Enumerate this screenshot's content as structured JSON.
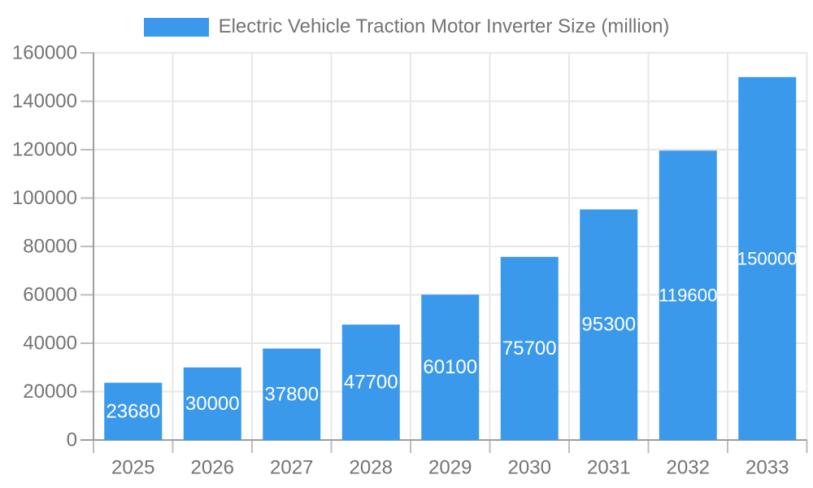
{
  "chart_data": {
    "type": "bar",
    "title": "Electric Vehicle Traction Motor Inverter Size (million)",
    "series_name": "Electric Vehicle Traction Motor Inverter Size (million)",
    "categories": [
      "2025",
      "2026",
      "2027",
      "2028",
      "2029",
      "2030",
      "2031",
      "2032",
      "2033"
    ],
    "values": [
      23680,
      30000,
      37800,
      47700,
      60100,
      75700,
      95300,
      119600,
      150000
    ],
    "xlabel": "",
    "ylabel": "",
    "ylim": [
      0,
      160000
    ],
    "yticks": [
      0,
      20000,
      40000,
      60000,
      80000,
      100000,
      120000,
      140000,
      160000
    ],
    "grid": true,
    "legend_position": "top",
    "value_labels_position": "inside-center",
    "colors": {
      "bar": "#3b99ec",
      "value_label": "#ffffff",
      "axis_text": "#747474",
      "grid_line": "#e7e7e7",
      "axis_line": "#9e9e9e",
      "tick_mark": "#bdbdbd",
      "background": "#ffffff"
    }
  }
}
